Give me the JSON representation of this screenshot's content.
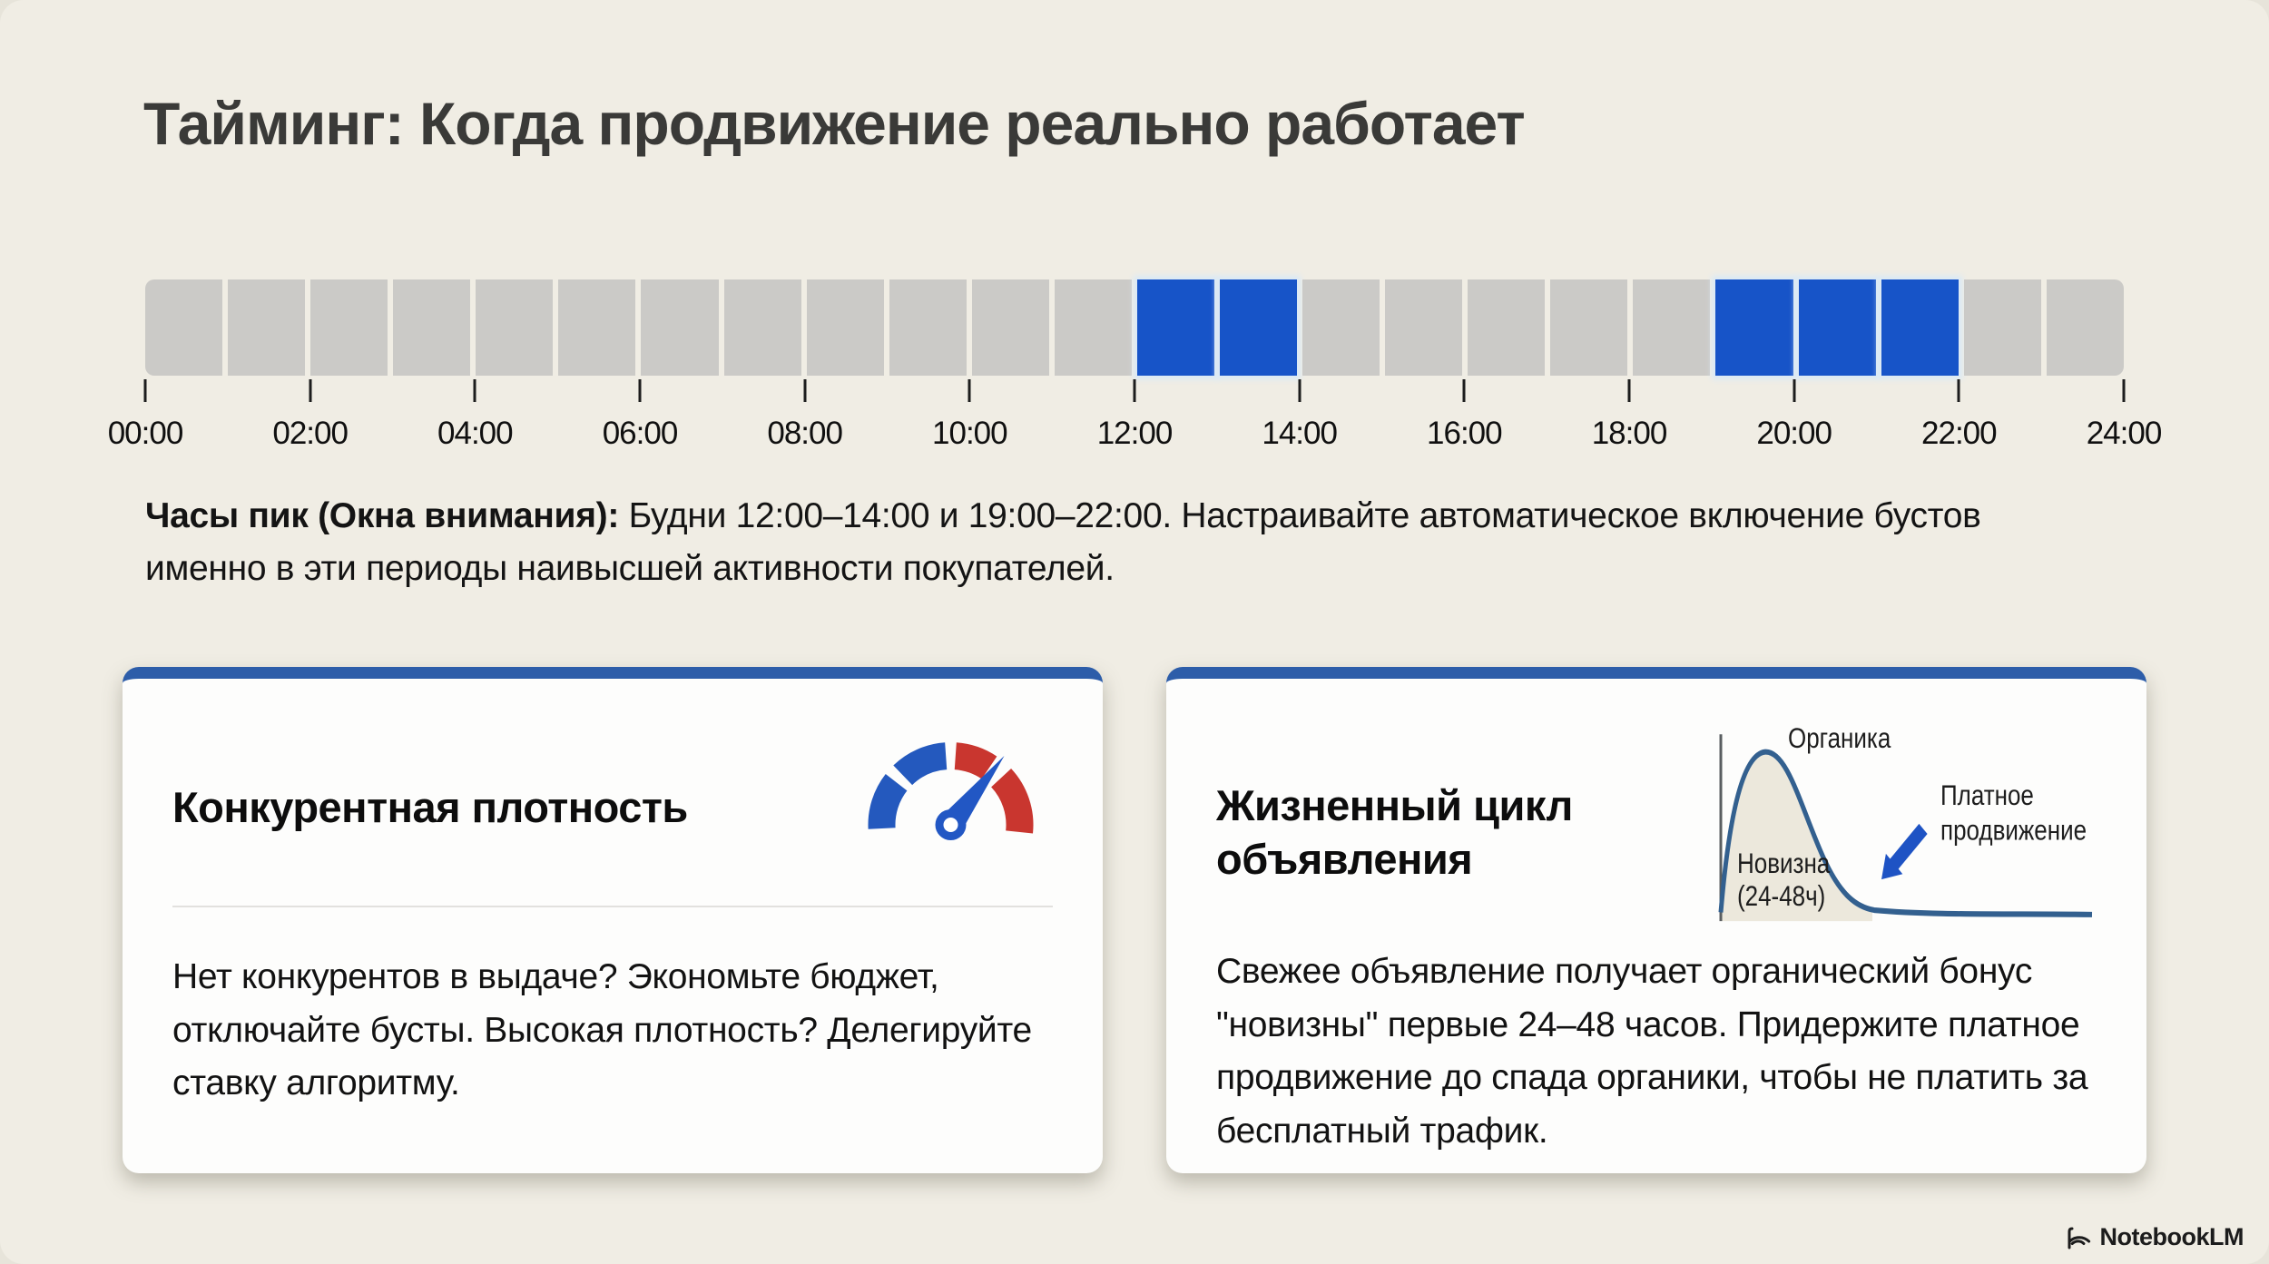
{
  "title": "Тайминг: Когда продвижение реально работает",
  "timeline": {
    "type": "hour-strip",
    "hours_total": 24,
    "active_hours": [
      12,
      13,
      19,
      20,
      21
    ],
    "active_ranges": [
      "12:00–14:00",
      "19:00–22:00"
    ],
    "tick_labels": [
      "00:00",
      "02:00",
      "04:00",
      "06:00",
      "08:00",
      "10:00",
      "12:00",
      "14:00",
      "16:00",
      "18:00",
      "20:00",
      "22:00",
      "24:00"
    ],
    "colors": {
      "active": "#1754c8",
      "inactive": "#cbcac7"
    }
  },
  "peak_note": {
    "lead": "Часы пик (Окна внимания):",
    "text": " Будни 12:00–14:00 и 19:00–22:00. Настраивайте автоматическое включение бустов именно в эти периоды наивысшей активности покупателей."
  },
  "cards": [
    {
      "title": "Конкурентная плотность",
      "icon": "gauge-icon",
      "body": "Нет конкурентов в выдаче? Экономьте бюджет, отключайте бусты. Высокая плотность? Делегируйте ставку алгоритму."
    },
    {
      "title": "Жизненный цикл объявления",
      "icon": "lifecycle-curve-chart",
      "body": "Свежее объявление получает органический бонус \"новизны\" первые 24–48 часов. Придержите платное продвижение до спада органики, чтобы не платить за бесплатный трафик.",
      "chart_labels": {
        "peak": "Органика",
        "novelty_line1": "Новизна",
        "novelty_line2": "(24-48ч)",
        "paid_line1": "Платное",
        "paid_line2": "продвижение"
      }
    }
  ],
  "footer": {
    "brand": "NotebookLM"
  }
}
